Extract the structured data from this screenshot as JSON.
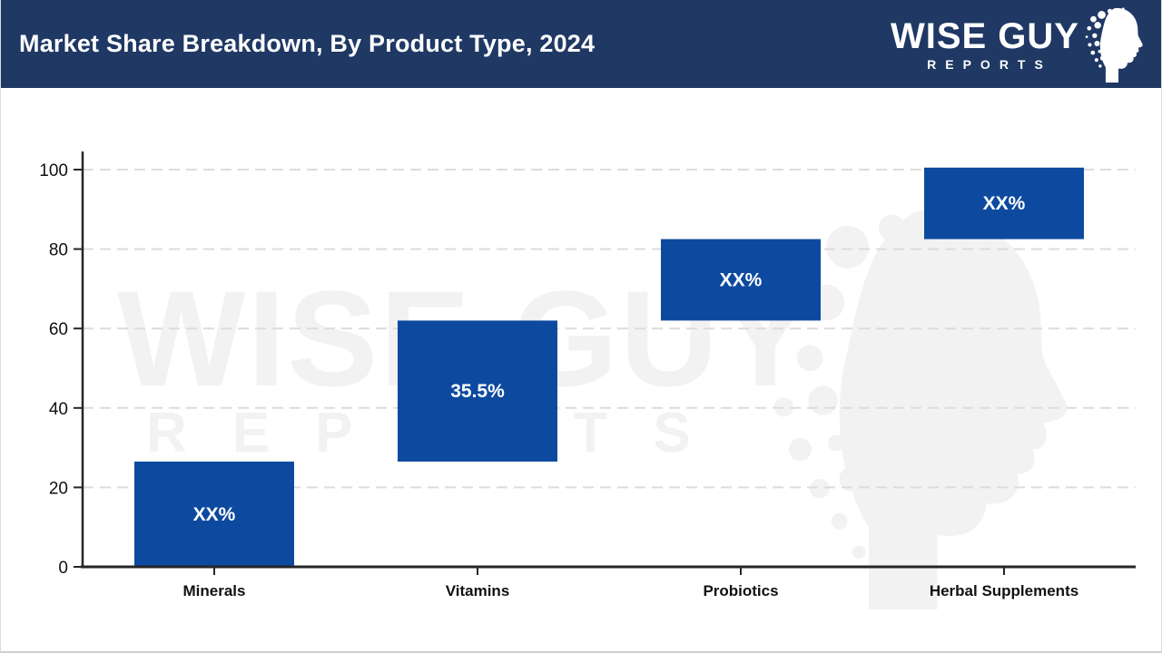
{
  "header": {
    "title": "Market Share Breakdown, By Product Type, 2024",
    "logo": {
      "line1": "WISE GUY",
      "line2": "REPORTS"
    }
  },
  "watermark": {
    "line1": "WISE GUY",
    "line2": "REPORTS"
  },
  "colors": {
    "header_bg": "#1f3864",
    "bar": "#0d4a9f",
    "grid": "#dcdcdc",
    "axis": "#262626",
    "bar_label": "#ffffff",
    "watermark": "#f2f2f2"
  },
  "chart_data": {
    "type": "bar",
    "subtype": "waterfall",
    "title": "Market Share Breakdown, By Product Type, 2024",
    "categories": [
      "Minerals",
      "Vitamins",
      "Probiotics",
      "Herbal Supplements"
    ],
    "segments": [
      {
        "category": "Minerals",
        "start": 0,
        "end": 26.5,
        "height": 26.5,
        "label": "XX%"
      },
      {
        "category": "Vitamins",
        "start": 26.5,
        "end": 62.0,
        "height": 35.5,
        "label": "35.5%"
      },
      {
        "category": "Probiotics",
        "start": 62.0,
        "end": 82.5,
        "height": 20.5,
        "label": "XX%"
      },
      {
        "category": "Herbal Supplements",
        "start": 82.5,
        "end": 100.5,
        "height": 18.0,
        "label": "XX%"
      }
    ],
    "y_ticks": [
      0,
      20,
      40,
      60,
      80,
      100
    ],
    "xlabel": "",
    "ylabel": "",
    "ylim": [
      0,
      104
    ],
    "grid": "horizontal-dashed",
    "legend": "none"
  }
}
